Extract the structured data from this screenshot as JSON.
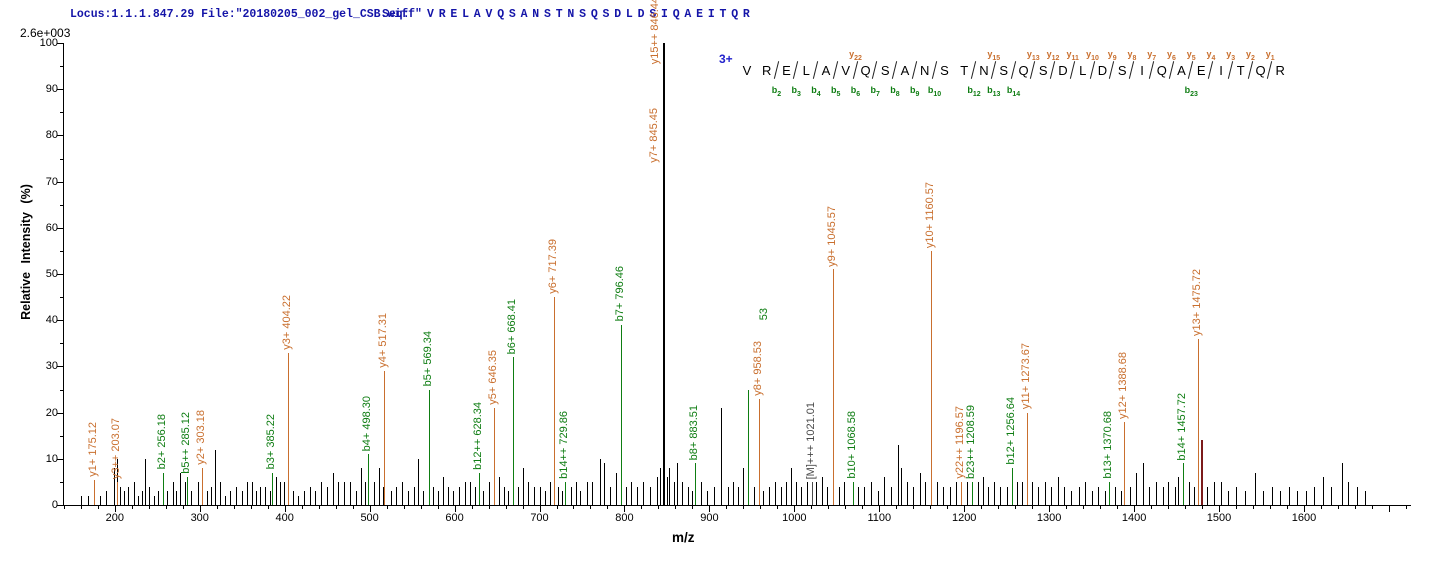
{
  "header": {
    "locus_file": "Locus:1.1.1.847.29 File:\"20180205_002_gel_CSB.wiff\"",
    "seq_label": "Seq:",
    "sequence": "VRELAVQSANSTNSQSDLDSIQAEITQR",
    "base_peak_intensity": "2.6e+003"
  },
  "chart_data": {
    "type": "bar",
    "subtype": "ms2-fragment-spectrum",
    "xlabel": "m/z",
    "ylabel": "Relative  Intensity  (%)",
    "x_range": [
      139,
      1726
    ],
    "y_range": [
      0,
      100
    ],
    "x_major_ticks": [
      200,
      300,
      400,
      500,
      600,
      700,
      800,
      900,
      1000,
      1100,
      1200,
      1300,
      1400,
      1500,
      1600
    ],
    "x_minor_step": 20,
    "y_major_ticks": [
      0,
      10,
      20,
      30,
      40,
      50,
      60,
      70,
      80,
      90,
      100
    ],
    "y_minor_step": 5,
    "grid": "off",
    "colors": {
      "y_ion": "#c96f2e",
      "b_ion": "#0e7d12",
      "raw_peak": "#000000",
      "precursor_label": "#4a4a4a",
      "dark_peak": "#7c1b1b",
      "header_text": "#1414a8",
      "charge_text": "#2121cc"
    },
    "precursor_charge": "3+",
    "annotation": {
      "residues": [
        "V",
        "R",
        "E",
        "L",
        "A",
        "V",
        "Q",
        "S",
        "A",
        "N",
        "S",
        "T",
        "N",
        "S",
        "Q",
        "S",
        "D",
        "L",
        "D",
        "S",
        "I",
        "Q",
        "A",
        "E",
        "I",
        "T",
        "Q",
        "R"
      ],
      "gaps": [
        {
          "after": 2,
          "b": "b2"
        },
        {
          "after": 3,
          "b": "b3"
        },
        {
          "after": 4,
          "b": "b4"
        },
        {
          "after": 5,
          "b": "b5"
        },
        {
          "after": 6,
          "b": "b6",
          "y": "y22"
        },
        {
          "after": 7,
          "b": "b7"
        },
        {
          "after": 8,
          "b": "b8"
        },
        {
          "after": 9,
          "b": "b9"
        },
        {
          "after": 10,
          "b": "b10"
        },
        {
          "after": 12,
          "b": "b12"
        },
        {
          "after": 13,
          "b": "b13",
          "y": "y15"
        },
        {
          "after": 14,
          "b": "b14"
        },
        {
          "after": 15,
          "y": "y13"
        },
        {
          "after": 16,
          "y": "y12"
        },
        {
          "after": 17,
          "y": "y11"
        },
        {
          "after": 18,
          "y": "y10"
        },
        {
          "after": 19,
          "y": "y9"
        },
        {
          "after": 20,
          "y": "y8"
        },
        {
          "after": 21,
          "y": "y7"
        },
        {
          "after": 22,
          "y": "y6"
        },
        {
          "after": 23,
          "b": "b23",
          "y": "y5"
        },
        {
          "after": 24,
          "y": "y4"
        },
        {
          "after": 25,
          "y": "y3"
        },
        {
          "after": 26,
          "y": "y2"
        },
        {
          "after": 27,
          "y": "y1"
        }
      ]
    },
    "labeled_peaks": [
      {
        "label": "y1+ 175.12",
        "mz": 175.12,
        "h": 5.5,
        "ion": "y"
      },
      {
        "label": "y3++ 203.07",
        "mz": 203.07,
        "h": 5,
        "ion": "y"
      },
      {
        "label": "b2+ 256.18",
        "mz": 256.18,
        "h": 7,
        "ion": "b"
      },
      {
        "label": "b5++ 285.12",
        "mz": 285.12,
        "h": 6,
        "ion": "b"
      },
      {
        "label": "y2+ 303.18",
        "mz": 303.18,
        "h": 8,
        "ion": "y"
      },
      {
        "label": "b3+ 385.22",
        "mz": 385.22,
        "h": 7,
        "ion": "b"
      },
      {
        "label": "y3+ 404.22",
        "mz": 404.22,
        "h": 33,
        "ion": "y"
      },
      {
        "label": "b4+ 498.30",
        "mz": 498.3,
        "h": 11,
        "ion": "b"
      },
      {
        "label": "y4+ 517.31",
        "mz": 517.31,
        "h": 29,
        "ion": "y"
      },
      {
        "label": "b5+ 569.34",
        "mz": 569.34,
        "h": 25,
        "ion": "b"
      },
      {
        "label": "b12++ 628.34",
        "mz": 628.34,
        "h": 7,
        "ion": "b"
      },
      {
        "label": "y5+ 646.35",
        "mz": 646.35,
        "h": 21,
        "ion": "y"
      },
      {
        "label": "b6+ 668.41",
        "mz": 668.41,
        "h": 32,
        "ion": "b"
      },
      {
        "label": "y6+ 717.39",
        "mz": 717.39,
        "h": 45,
        "ion": "y"
      },
      {
        "label": "b14++ 729.86",
        "mz": 729.86,
        "h": 5,
        "ion": "b"
      },
      {
        "label": "b7+ 796.46",
        "mz": 796.46,
        "h": 39,
        "ion": "b"
      },
      {
        "label": "y7+ 845.45",
        "mz": 845.45,
        "h": 100,
        "ion": "y",
        "peak_color": "#000000",
        "peak_w": 2,
        "dy": 123,
        "side": "left"
      },
      {
        "label": "y15++ 846.44",
        "mz": 846.44,
        "h": 100,
        "ion": "y",
        "no_line": true,
        "dy": 24,
        "side": "left"
      },
      {
        "label": "b8+ 883.51",
        "mz": 883.51,
        "h": 9,
        "ion": "b"
      },
      {
        "label": "y8+ 958.53",
        "mz": 958.53,
        "h": 23,
        "ion": "y"
      },
      {
        "label": "53",
        "mz": 966,
        "h": 23,
        "ion": "b",
        "no_line": true,
        "dy": -76
      },
      {
        "label": "[M]+++ 1021.01",
        "mz": 1021.01,
        "h": 5,
        "ion": "M"
      },
      {
        "label": "y9+ 1045.57",
        "mz": 1045.57,
        "h": 51,
        "ion": "y"
      },
      {
        "label": "b10+ 1068.58",
        "mz": 1068.58,
        "h": 5,
        "ion": "b"
      },
      {
        "label": "y10+ 1160.57",
        "mz": 1160.57,
        "h": 55,
        "ion": "y"
      },
      {
        "label": "y22++ 1196.57",
        "mz": 1196.57,
        "h": 5,
        "ion": "y"
      },
      {
        "label": "b23++ 1208.59",
        "mz": 1208.59,
        "h": 5,
        "ion": "b"
      },
      {
        "label": "b12+ 1256.64",
        "mz": 1256.64,
        "h": 8,
        "ion": "b"
      },
      {
        "label": "y11+ 1273.67",
        "mz": 1273.67,
        "h": 20,
        "ion": "y"
      },
      {
        "label": "b13+ 1370.68",
        "mz": 1370.68,
        "h": 5,
        "ion": "b"
      },
      {
        "label": "y12+ 1388.68",
        "mz": 1388.68,
        "h": 18,
        "ion": "y"
      },
      {
        "label": "b14+ 1457.72",
        "mz": 1457.72,
        "h": 9,
        "ion": "b"
      },
      {
        "label": "y13+ 1475.72",
        "mz": 1475.72,
        "h": 36,
        "ion": "y"
      }
    ],
    "extra_peaks": [
      {
        "mz": 946,
        "h": 25,
        "color": "#0e7d12",
        "w": 1
      },
      {
        "mz": 1479,
        "h": 14,
        "color": "#7c1b1b",
        "w": 2
      }
    ],
    "raw_peaks": [
      [
        160,
        2
      ],
      [
        168,
        2
      ],
      [
        183,
        2
      ],
      [
        190,
        3
      ],
      [
        199,
        8
      ],
      [
        202,
        10
      ],
      [
        206,
        4
      ],
      [
        211,
        3
      ],
      [
        216,
        4
      ],
      [
        222,
        5
      ],
      [
        227,
        2
      ],
      [
        232,
        3
      ],
      [
        236,
        10
      ],
      [
        240,
        4
      ],
      [
        246,
        2
      ],
      [
        251,
        3
      ],
      [
        262,
        3
      ],
      [
        268,
        5
      ],
      [
        272,
        3
      ],
      [
        277,
        7
      ],
      [
        283,
        5
      ],
      [
        290,
        3
      ],
      [
        298,
        5
      ],
      [
        308,
        3
      ],
      [
        313,
        4
      ],
      [
        318,
        12
      ],
      [
        324,
        5
      ],
      [
        330,
        2
      ],
      [
        336,
        3
      ],
      [
        343,
        4
      ],
      [
        350,
        3
      ],
      [
        356,
        5
      ],
      [
        361,
        5
      ],
      [
        366,
        3
      ],
      [
        371,
        4
      ],
      [
        377,
        4
      ],
      [
        383,
        3
      ],
      [
        390,
        6
      ],
      [
        394,
        5
      ],
      [
        399,
        5
      ],
      [
        410,
        3
      ],
      [
        416,
        2
      ],
      [
        423,
        3
      ],
      [
        430,
        4
      ],
      [
        436,
        3
      ],
      [
        443,
        5
      ],
      [
        450,
        4
      ],
      [
        457,
        7
      ],
      [
        463,
        5
      ],
      [
        470,
        5
      ],
      [
        477,
        5
      ],
      [
        484,
        3
      ],
      [
        490,
        8
      ],
      [
        495,
        5
      ],
      [
        505,
        5
      ],
      [
        511,
        8
      ],
      [
        516,
        4
      ],
      [
        525,
        3
      ],
      [
        531,
        4
      ],
      [
        538,
        5
      ],
      [
        545,
        3
      ],
      [
        552,
        4
      ],
      [
        557,
        10
      ],
      [
        563,
        3
      ],
      [
        575,
        4
      ],
      [
        581,
        3
      ],
      [
        586,
        6
      ],
      [
        592,
        4
      ],
      [
        598,
        3
      ],
      [
        605,
        4
      ],
      [
        612,
        5
      ],
      [
        618,
        5
      ],
      [
        624,
        4
      ],
      [
        634,
        3
      ],
      [
        640,
        5
      ],
      [
        652,
        6
      ],
      [
        658,
        4
      ],
      [
        663,
        3
      ],
      [
        675,
        4
      ],
      [
        681,
        8
      ],
      [
        687,
        5
      ],
      [
        693,
        4
      ],
      [
        700,
        4
      ],
      [
        706,
        3
      ],
      [
        712,
        5
      ],
      [
        722,
        4
      ],
      [
        727,
        3
      ],
      [
        737,
        4
      ],
      [
        743,
        5
      ],
      [
        748,
        3
      ],
      [
        756,
        5
      ],
      [
        762,
        5
      ],
      [
        771,
        10
      ],
      [
        776,
        9
      ],
      [
        783,
        4
      ],
      [
        790,
        7
      ],
      [
        802,
        4
      ],
      [
        808,
        5
      ],
      [
        815,
        4
      ],
      [
        822,
        5
      ],
      [
        830,
        4
      ],
      [
        838,
        6
      ],
      [
        842,
        8
      ],
      [
        850,
        6
      ],
      [
        853,
        8
      ],
      [
        858,
        5
      ],
      [
        862,
        9
      ],
      [
        868,
        5
      ],
      [
        875,
        4
      ],
      [
        880,
        3
      ],
      [
        890,
        5
      ],
      [
        897,
        3
      ],
      [
        905,
        4
      ],
      [
        914,
        21
      ],
      [
        922,
        4
      ],
      [
        928,
        5
      ],
      [
        934,
        4
      ],
      [
        940,
        8
      ],
      [
        953,
        4
      ],
      [
        963,
        3
      ],
      [
        970,
        4
      ],
      [
        977,
        5
      ],
      [
        984,
        4
      ],
      [
        990,
        5
      ],
      [
        996,
        8
      ],
      [
        1002,
        5
      ],
      [
        1008,
        4
      ],
      [
        1015,
        5
      ],
      [
        1026,
        5
      ],
      [
        1032,
        6
      ],
      [
        1038,
        4
      ],
      [
        1052,
        4
      ],
      [
        1058,
        5
      ],
      [
        1075,
        4
      ],
      [
        1082,
        4
      ],
      [
        1090,
        5
      ],
      [
        1098,
        3
      ],
      [
        1106,
        6
      ],
      [
        1114,
        4
      ],
      [
        1122,
        13
      ],
      [
        1126,
        8
      ],
      [
        1133,
        5
      ],
      [
        1140,
        4
      ],
      [
        1148,
        7
      ],
      [
        1154,
        5
      ],
      [
        1168,
        5
      ],
      [
        1175,
        4
      ],
      [
        1183,
        4
      ],
      [
        1190,
        5
      ],
      [
        1203,
        5
      ],
      [
        1216,
        5
      ],
      [
        1222,
        6
      ],
      [
        1228,
        4
      ],
      [
        1235,
        5
      ],
      [
        1242,
        4
      ],
      [
        1250,
        4
      ],
      [
        1262,
        5
      ],
      [
        1268,
        5
      ],
      [
        1280,
        5
      ],
      [
        1287,
        4
      ],
      [
        1295,
        5
      ],
      [
        1302,
        4
      ],
      [
        1310,
        6
      ],
      [
        1318,
        4
      ],
      [
        1326,
        3
      ],
      [
        1335,
        4
      ],
      [
        1342,
        5
      ],
      [
        1350,
        3
      ],
      [
        1358,
        4
      ],
      [
        1366,
        3
      ],
      [
        1378,
        4
      ],
      [
        1385,
        3
      ],
      [
        1395,
        4
      ],
      [
        1402,
        7
      ],
      [
        1410,
        9
      ],
      [
        1418,
        4
      ],
      [
        1426,
        5
      ],
      [
        1434,
        4
      ],
      [
        1440,
        5
      ],
      [
        1448,
        4
      ],
      [
        1452,
        6
      ],
      [
        1465,
        5
      ],
      [
        1470,
        4
      ],
      [
        1486,
        4
      ],
      [
        1494,
        5
      ],
      [
        1502,
        5
      ],
      [
        1510,
        3
      ],
      [
        1520,
        4
      ],
      [
        1530,
        3
      ],
      [
        1542,
        7
      ],
      [
        1552,
        3
      ],
      [
        1562,
        4
      ],
      [
        1572,
        3
      ],
      [
        1582,
        4
      ],
      [
        1592,
        3
      ],
      [
        1602,
        3
      ],
      [
        1612,
        4
      ],
      [
        1622,
        6
      ],
      [
        1632,
        4
      ],
      [
        1645,
        9
      ],
      [
        1652,
        5
      ],
      [
        1662,
        4
      ],
      [
        1672,
        3
      ]
    ]
  }
}
